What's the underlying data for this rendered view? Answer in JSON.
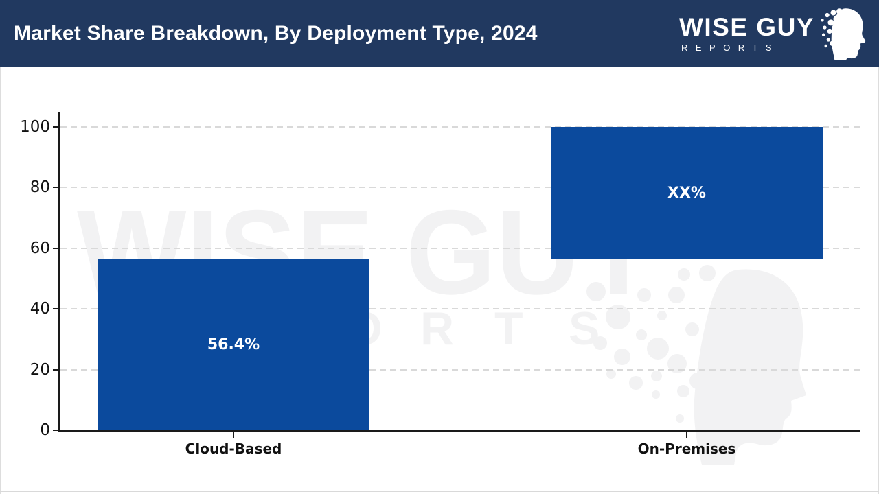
{
  "header": {
    "title": "Market Share Breakdown, By Deployment Type, 2024",
    "logo": {
      "primary": "WISE GUY",
      "secondary": "REPORTS"
    }
  },
  "watermark": {
    "primary": "WISE GUY",
    "secondary": "REPORTS"
  },
  "chart_data": {
    "type": "bar",
    "subtype": "stacked-percentage-waterfall",
    "title": "Market Share Breakdown, By Deployment Type, 2024",
    "categories": [
      "Cloud-Based",
      "On-Premises"
    ],
    "series": [
      {
        "name": "Market share (%)",
        "segments": [
          {
            "category": "Cloud-Based",
            "from": 0,
            "to": 56.4,
            "label": "56.4%"
          },
          {
            "category": "On-Premises",
            "from": 56.4,
            "to": 100,
            "label": "XX%"
          }
        ]
      }
    ],
    "xlabel": "",
    "ylabel": "",
    "ylim": [
      0,
      105
    ],
    "yticks": [
      0,
      20,
      40,
      60,
      80,
      100
    ],
    "grid": "horizontal-dashed",
    "legend": "none",
    "bar_color": "#0B4A9D"
  },
  "colors": {
    "header_bg": "#213960",
    "bar": "#0B4A9D",
    "grid": "#d9d9d9",
    "axis": "#1a1a1a",
    "bar_label": "#ffffff",
    "watermark": "#f2f2f3",
    "frame": "#d9d9d9"
  }
}
